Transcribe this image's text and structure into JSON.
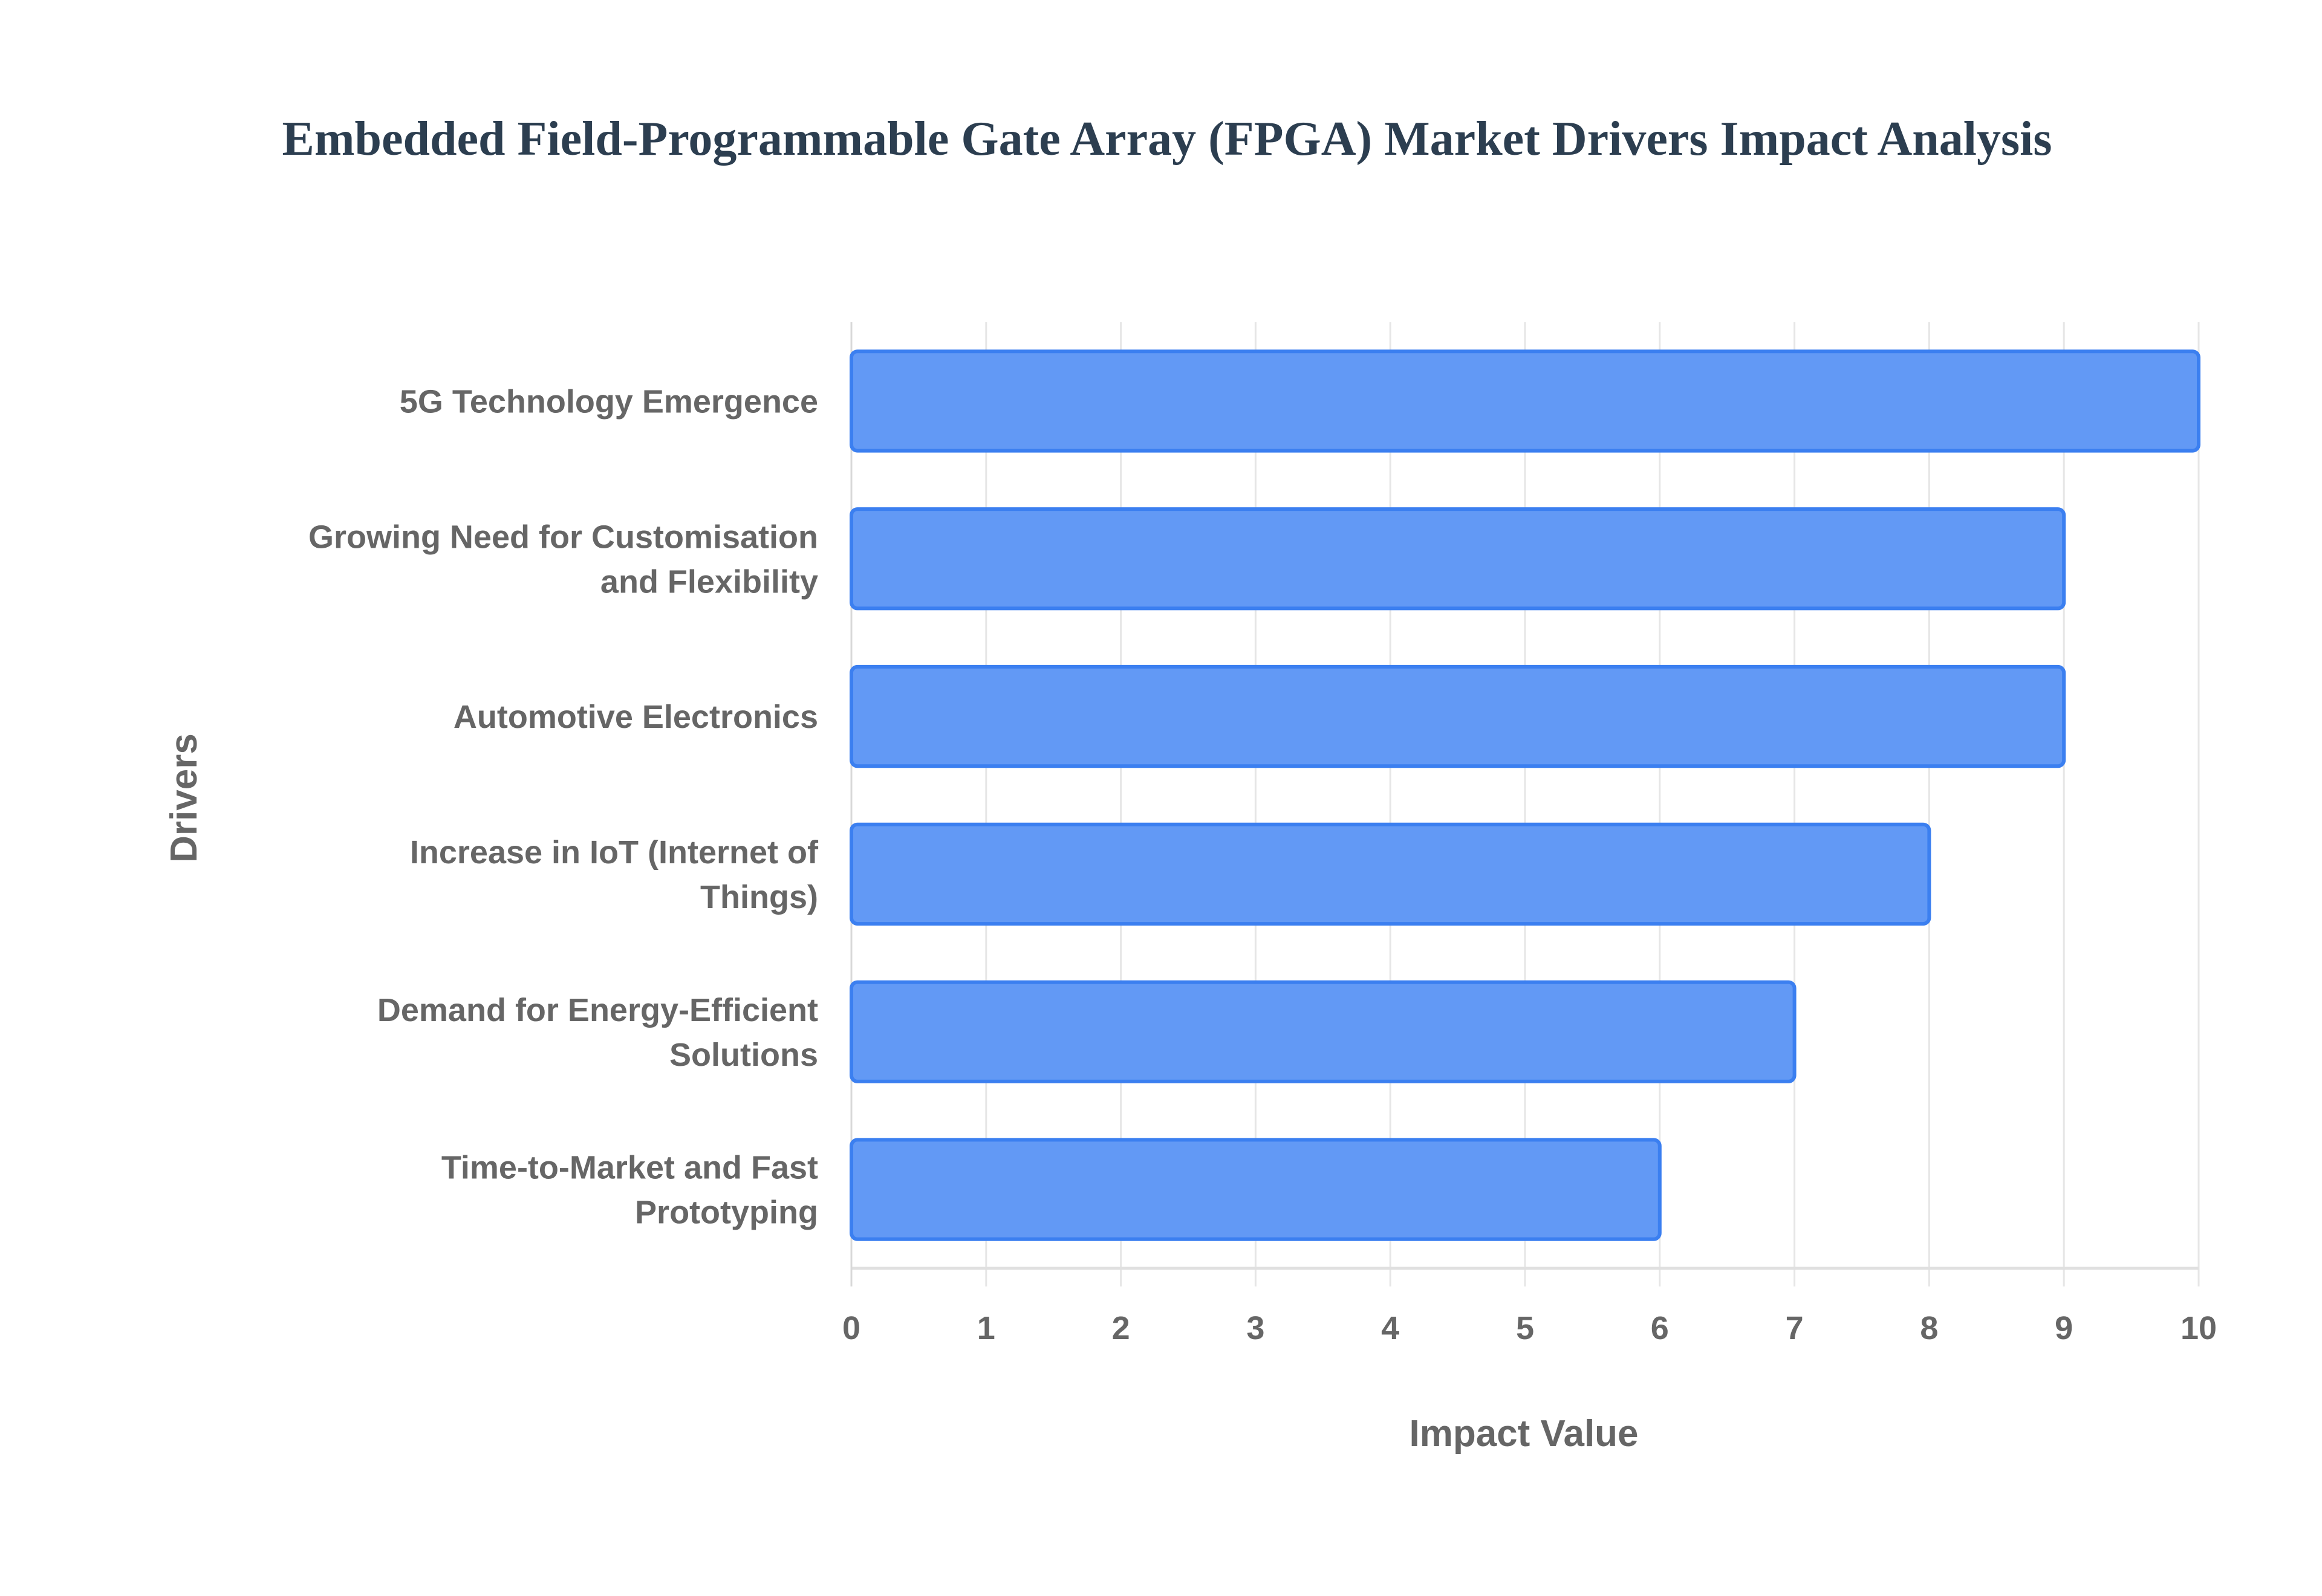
{
  "chart_data": {
    "type": "bar",
    "orientation": "horizontal",
    "title": "Embedded Field-Programmable Gate Array (FPGA) Market Drivers Impact Analysis",
    "xlabel": "Impact Value",
    "ylabel": "Drivers",
    "categories": [
      [
        "5G Technology Emergence"
      ],
      [
        "Growing Need for Customisation",
        "and Flexibility"
      ],
      [
        "Automotive Electronics"
      ],
      [
        "Increase in IoT (Internet of",
        "Things)"
      ],
      [
        "Demand for Energy-Efficient",
        "Solutions"
      ],
      [
        "Time-to-Market and Fast",
        "Prototyping"
      ]
    ],
    "values": [
      10,
      9,
      9,
      8,
      7,
      6
    ],
    "xlim": [
      0,
      10
    ],
    "xticks": [
      "0",
      "1",
      "2",
      "3",
      "4",
      "5",
      "6",
      "7",
      "8",
      "9",
      "10"
    ],
    "grid": true,
    "legend": "none",
    "colors": {
      "bar_fill": "#6299f5",
      "bar_border": "#3b7ff0",
      "grid": "#e6e6e6",
      "text": "#666666",
      "title": "#2c3e50"
    }
  }
}
